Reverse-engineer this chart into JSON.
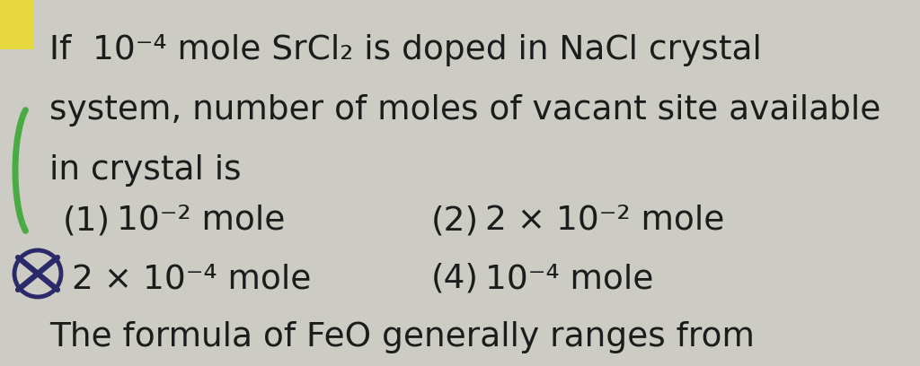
{
  "bg_color": "#cccbc4",
  "text_color": "#1c1c1c",
  "fig_width": 10.24,
  "fig_height": 4.08,
  "dpi": 100,
  "line1": "If  10⁻⁴ mole SrCl₂ is doped in NaCl crystal",
  "line2": "system, number of moles of vacant site available",
  "line3": "in crystal is",
  "opt1_label": "(1)",
  "opt1_text": "10⁻² mole",
  "opt2_label": "(2)",
  "opt2_text": "2 × 10⁻² mole",
  "opt3_text": "2 × 10⁻⁴ mole",
  "opt4_label": "(4)",
  "opt4_text": "10⁻⁴ mole",
  "footer": "The formula of FeO generally ranges from",
  "cross_color": "#2a2a6a",
  "yellow_color": "#e8d840",
  "green_color": "#4aaa44"
}
